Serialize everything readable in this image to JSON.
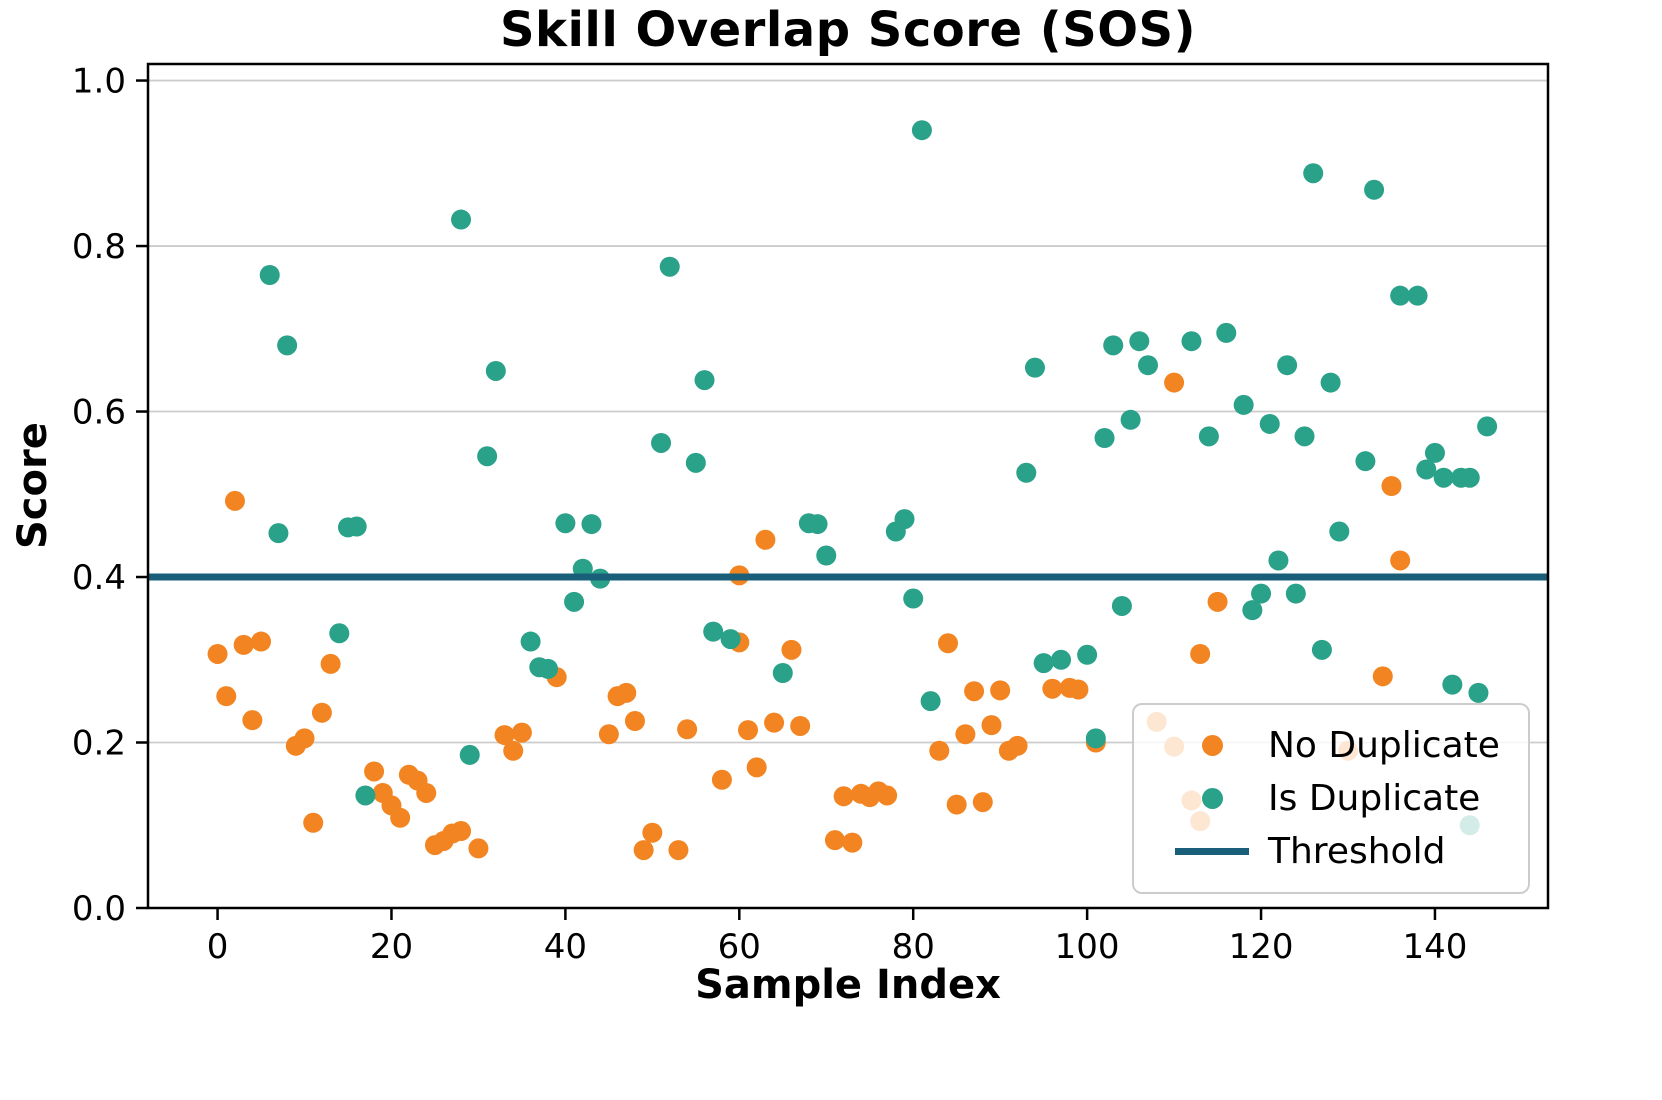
{
  "chart_data": {
    "type": "scatter",
    "title": "Skill Overlap Score (SOS)",
    "xlabel": "Sample Index",
    "ylabel": "Score",
    "xlim": [
      -8,
      153
    ],
    "ylim": [
      0,
      1.02
    ],
    "xticks": [
      0,
      20,
      40,
      60,
      80,
      100,
      120,
      140
    ],
    "yticks": [
      0.0,
      0.2,
      0.4,
      0.6,
      0.8,
      1.0
    ],
    "ytick_labels": [
      "0.0",
      "0.2",
      "0.4",
      "0.6",
      "0.8",
      "1.0"
    ],
    "grid": "horizontal",
    "grid_color": "#cccccc",
    "legend_position": "lower right",
    "marker_radius": 10,
    "series": [
      {
        "name": "No Duplicate",
        "color": "#f28522",
        "points": [
          [
            0,
            0.307
          ],
          [
            1,
            0.256
          ],
          [
            2,
            0.492
          ],
          [
            3,
            0.318
          ],
          [
            4,
            0.227
          ],
          [
            5,
            0.322
          ],
          [
            9,
            0.196
          ],
          [
            10,
            0.205
          ],
          [
            11,
            0.103
          ],
          [
            12,
            0.236
          ],
          [
            13,
            0.295
          ],
          [
            18,
            0.165
          ],
          [
            19,
            0.139
          ],
          [
            20,
            0.124
          ],
          [
            21,
            0.109
          ],
          [
            22,
            0.161
          ],
          [
            23,
            0.154
          ],
          [
            24,
            0.139
          ],
          [
            25,
            0.076
          ],
          [
            26,
            0.081
          ],
          [
            27,
            0.09
          ],
          [
            28,
            0.093
          ],
          [
            30,
            0.072
          ],
          [
            33,
            0.209
          ],
          [
            34,
            0.19
          ],
          [
            35,
            0.212
          ],
          [
            39,
            0.279
          ],
          [
            45,
            0.21
          ],
          [
            46,
            0.256
          ],
          [
            47,
            0.26
          ],
          [
            48,
            0.226
          ],
          [
            49,
            0.07
          ],
          [
            50,
            0.091
          ],
          [
            53,
            0.07
          ],
          [
            54,
            0.216
          ],
          [
            58,
            0.155
          ],
          [
            60,
            0.321
          ],
          [
            60,
            0.402
          ],
          [
            61,
            0.215
          ],
          [
            62,
            0.17
          ],
          [
            63,
            0.445
          ],
          [
            64,
            0.224
          ],
          [
            66,
            0.312
          ],
          [
            67,
            0.22
          ],
          [
            71,
            0.082
          ],
          [
            72,
            0.135
          ],
          [
            73,
            0.079
          ],
          [
            74,
            0.138
          ],
          [
            75,
            0.134
          ],
          [
            76,
            0.141
          ],
          [
            77,
            0.136
          ],
          [
            83,
            0.19
          ],
          [
            84,
            0.32
          ],
          [
            85,
            0.125
          ],
          [
            86,
            0.21
          ],
          [
            87,
            0.262
          ],
          [
            88,
            0.128
          ],
          [
            89,
            0.221
          ],
          [
            90,
            0.263
          ],
          [
            91,
            0.19
          ],
          [
            92,
            0.196
          ],
          [
            96,
            0.265
          ],
          [
            98,
            0.266
          ],
          [
            99,
            0.264
          ],
          [
            101,
            0.2
          ],
          [
            108,
            0.225
          ],
          [
            110,
            0.195
          ],
          [
            112,
            0.13
          ],
          [
            113,
            0.105
          ],
          [
            110,
            0.635
          ],
          [
            113,
            0.307
          ],
          [
            115,
            0.37
          ],
          [
            130,
            0.19
          ],
          [
            134,
            0.28
          ],
          [
            135,
            0.51
          ],
          [
            136,
            0.42
          ]
        ]
      },
      {
        "name": "Is Duplicate",
        "color": "#2aa189",
        "points": [
          [
            6,
            0.765
          ],
          [
            7,
            0.453
          ],
          [
            8,
            0.68
          ],
          [
            14,
            0.332
          ],
          [
            15,
            0.46
          ],
          [
            16,
            0.461
          ],
          [
            17,
            0.136
          ],
          [
            28,
            0.832
          ],
          [
            29,
            0.185
          ],
          [
            31,
            0.546
          ],
          [
            32,
            0.649
          ],
          [
            36,
            0.322
          ],
          [
            37,
            0.291
          ],
          [
            38,
            0.289
          ],
          [
            40,
            0.465
          ],
          [
            41,
            0.37
          ],
          [
            42,
            0.41
          ],
          [
            43,
            0.464
          ],
          [
            44,
            0.398
          ],
          [
            51,
            0.562
          ],
          [
            52,
            0.775
          ],
          [
            55,
            0.538
          ],
          [
            56,
            0.638
          ],
          [
            57,
            0.334
          ],
          [
            59,
            0.325
          ],
          [
            65,
            0.284
          ],
          [
            68,
            0.465
          ],
          [
            69,
            0.464
          ],
          [
            70,
            0.426
          ],
          [
            78,
            0.455
          ],
          [
            79,
            0.47
          ],
          [
            80,
            0.374
          ],
          [
            81,
            0.94
          ],
          [
            82,
            0.25
          ],
          [
            93,
            0.526
          ],
          [
            94,
            0.653
          ],
          [
            95,
            0.296
          ],
          [
            97,
            0.3
          ],
          [
            100,
            0.306
          ],
          [
            101,
            0.205
          ],
          [
            102,
            0.568
          ],
          [
            103,
            0.68
          ],
          [
            104,
            0.365
          ],
          [
            105,
            0.59
          ],
          [
            106,
            0.685
          ],
          [
            107,
            0.656
          ],
          [
            112,
            0.685
          ],
          [
            114,
            0.57
          ],
          [
            116,
            0.695
          ],
          [
            118,
            0.608
          ],
          [
            119,
            0.36
          ],
          [
            120,
            0.38
          ],
          [
            121,
            0.585
          ],
          [
            122,
            0.42
          ],
          [
            123,
            0.656
          ],
          [
            124,
            0.38
          ],
          [
            125,
            0.57
          ],
          [
            126,
            0.888
          ],
          [
            127,
            0.312
          ],
          [
            128,
            0.635
          ],
          [
            129,
            0.455
          ],
          [
            132,
            0.54
          ],
          [
            133,
            0.868
          ],
          [
            136,
            0.74
          ],
          [
            138,
            0.74
          ],
          [
            139,
            0.53
          ],
          [
            140,
            0.55
          ],
          [
            141,
            0.52
          ],
          [
            142,
            0.27
          ],
          [
            143,
            0.52
          ],
          [
            144,
            0.52
          ],
          [
            145,
            0.26
          ],
          [
            146,
            0.582
          ],
          [
            144,
            0.1
          ]
        ]
      }
    ],
    "threshold": {
      "label": "Threshold",
      "value": 0.4,
      "color": "#1a5f7a"
    }
  },
  "legend": {
    "entries": [
      "No Duplicate",
      "Is Duplicate",
      "Threshold"
    ]
  }
}
